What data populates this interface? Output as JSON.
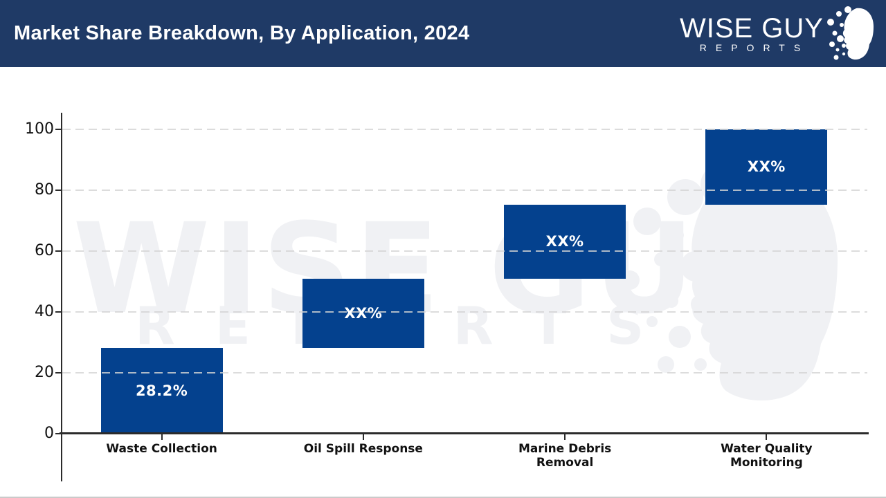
{
  "header": {
    "title": "Market Share Breakdown, By Application, 2024",
    "logo": {
      "primary": "WISE GUY",
      "secondary": "REPORTS"
    }
  },
  "watermark": {
    "primary": "WISE GUY",
    "secondary": "REPORTS"
  },
  "chart_data": {
    "type": "bar",
    "subtype": "waterfall-floating-bars",
    "title": "Market Share Breakdown, By Application, 2024",
    "categories": [
      "Waste Collection",
      "Oil Spill Response",
      "Marine Debris\nRemoval",
      "Water Quality\nMonitoring"
    ],
    "segments": [
      {
        "category": "Waste Collection",
        "label": "28.2%",
        "start": 0,
        "end": 28.2
      },
      {
        "category": "Oil Spill Response",
        "label": "XX%",
        "start": 28.2,
        "end": 51.0
      },
      {
        "category": "Marine Debris Removal",
        "label": "XX%",
        "start": 51.0,
        "end": 75.3
      },
      {
        "category": "Water Quality Monitoring",
        "label": "XX%",
        "start": 75.3,
        "end": 100.0
      }
    ],
    "yticks": [
      0,
      20,
      40,
      60,
      80,
      100
    ],
    "ylim": [
      0,
      100
    ],
    "xlabel": "",
    "ylabel": "",
    "legend": "none",
    "grid": "horizontal-dashed-over-bars"
  },
  "colors": {
    "header_bg": "#1f3a66",
    "bar": "#04418e",
    "bar_label": "#ffffff",
    "watermark": "#f0f1f4",
    "axis": "#2b2b2b",
    "grid": "#d4d4d4",
    "tick_label": "#111111",
    "title_text": "#ffffff"
  }
}
